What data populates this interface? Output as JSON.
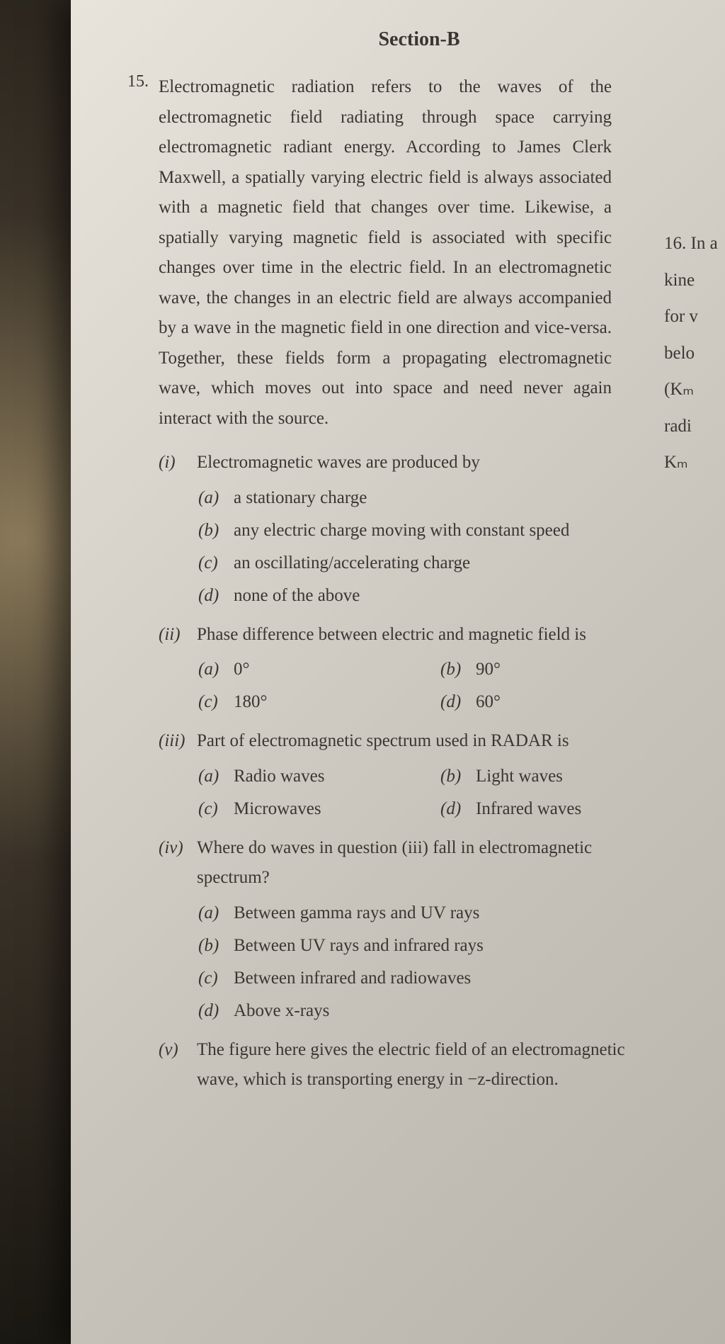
{
  "section_header": "Section-B",
  "question": {
    "number": "15.",
    "passage": "Electromagnetic radiation refers to the waves of the electromagnetic field radiating through space carrying electromagnetic radiant energy. According to James Clerk Maxwell, a spatially varying electric field is always associated with a magnetic field that changes over time. Likewise, a spatially varying magnetic field is associated with specific changes over time in the electric field. In an electromagnetic wave, the changes in an electric field are always accompanied by a wave in the magnetic field in one direction and vice-versa. Together, these fields form a propagating electromagnetic wave, which moves out into space and need never again interact with the source."
  },
  "subquestions": [
    {
      "label": "(i)",
      "text": "Electromagnetic waves are produced by",
      "options": [
        {
          "label": "(a)",
          "text": "a stationary charge"
        },
        {
          "label": "(b)",
          "text": "any electric charge moving with constant speed"
        },
        {
          "label": "(c)",
          "text": "an oscillating/accelerating charge"
        },
        {
          "label": "(d)",
          "text": "none of the above"
        }
      ]
    },
    {
      "label": "(ii)",
      "text": "Phase difference between electric and magnetic field is",
      "options_rows": [
        [
          {
            "label": "(a)",
            "text": "0°"
          },
          {
            "label": "(b)",
            "text": "90°"
          }
        ],
        [
          {
            "label": "(c)",
            "text": "180°"
          },
          {
            "label": "(d)",
            "text": "60°"
          }
        ]
      ]
    },
    {
      "label": "(iii)",
      "text": "Part of electromagnetic spectrum used in RADAR is",
      "options_rows": [
        [
          {
            "label": "(a)",
            "text": "Radio waves"
          },
          {
            "label": "(b)",
            "text": "Light waves"
          }
        ],
        [
          {
            "label": "(c)",
            "text": "Microwaves"
          },
          {
            "label": "(d)",
            "text": "Infrared waves"
          }
        ]
      ]
    },
    {
      "label": "(iv)",
      "text": "Where do waves in question (iii) fall in electromagnetic spectrum?",
      "options": [
        {
          "label": "(a)",
          "text": "Between gamma rays and UV rays"
        },
        {
          "label": "(b)",
          "text": "Between UV rays and infrared rays"
        },
        {
          "label": "(c)",
          "text": "Between infrared and radiowaves"
        },
        {
          "label": "(d)",
          "text": "Above x-rays"
        }
      ]
    },
    {
      "label": "(v)",
      "text": "The figure here gives the electric field of an electromagnetic wave, which is transporting energy in −z-direction."
    }
  ],
  "margin_fragments": [
    "16. In a",
    "kine",
    "for v",
    "belo",
    "(Kₘ",
    "radi",
    "Kₘ"
  ]
}
